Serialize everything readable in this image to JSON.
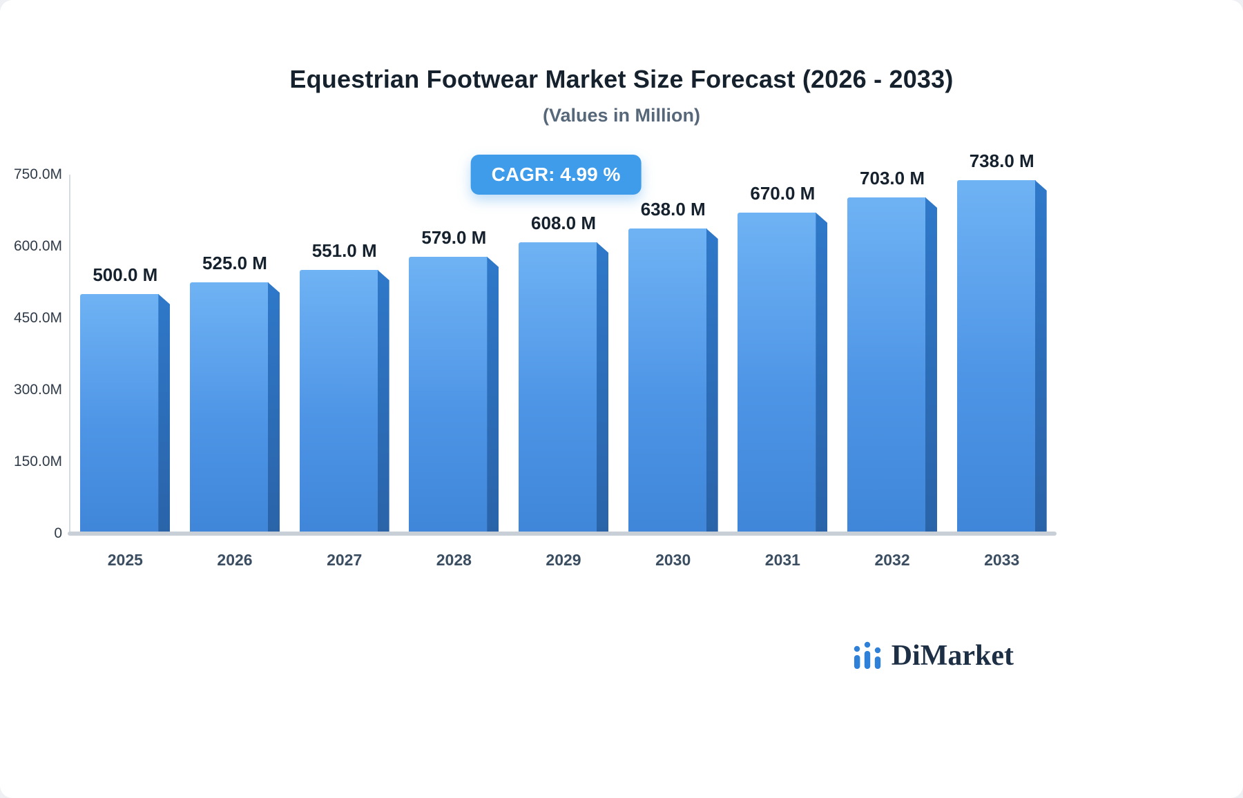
{
  "header": {
    "title": "Equestrian Footwear Market Size Forecast (2026 - 2033)",
    "subtitle": "(Values in Million)"
  },
  "badge": {
    "label": "CAGR: 4.99 %"
  },
  "logo": {
    "text": "DiMarket"
  },
  "colors": {
    "bar_face_top": "#6fb3f4",
    "bar_face_bottom": "#3f86d9",
    "bar_side": "#2a63a8",
    "badge_bg": "#3f9cea",
    "title_text": "#16212e",
    "subtitle_text": "#566779",
    "axis_line": "#c9cfd7",
    "logo_blue": "#2f80d8"
  },
  "chart_data": {
    "type": "bar",
    "title": "Equestrian Footwear Market Size Forecast (2026 - 2033)",
    "subtitle": "(Values in Million)",
    "categories": [
      "2025",
      "2026",
      "2027",
      "2028",
      "2029",
      "2030",
      "2031",
      "2032",
      "2033"
    ],
    "values": [
      500,
      525,
      551,
      579,
      608,
      638,
      670,
      703,
      738
    ],
    "value_labels": [
      "500.0 M",
      "525.0 M",
      "551.0 M",
      "579.0 M",
      "608.0 M",
      "638.0 M",
      "670.0 M",
      "703.0 M",
      "738.0 M"
    ],
    "xlabel": "",
    "ylabel": "",
    "ylim": [
      0,
      750
    ],
    "y_ticks": {
      "values": [
        0,
        150,
        300,
        450,
        600,
        750
      ],
      "labels": [
        "0",
        "150.0M",
        "300.0M",
        "450.0M",
        "600.0M",
        "750.0M"
      ]
    },
    "grid": false,
    "legend": false,
    "annotation": "CAGR: 4.99 %"
  }
}
